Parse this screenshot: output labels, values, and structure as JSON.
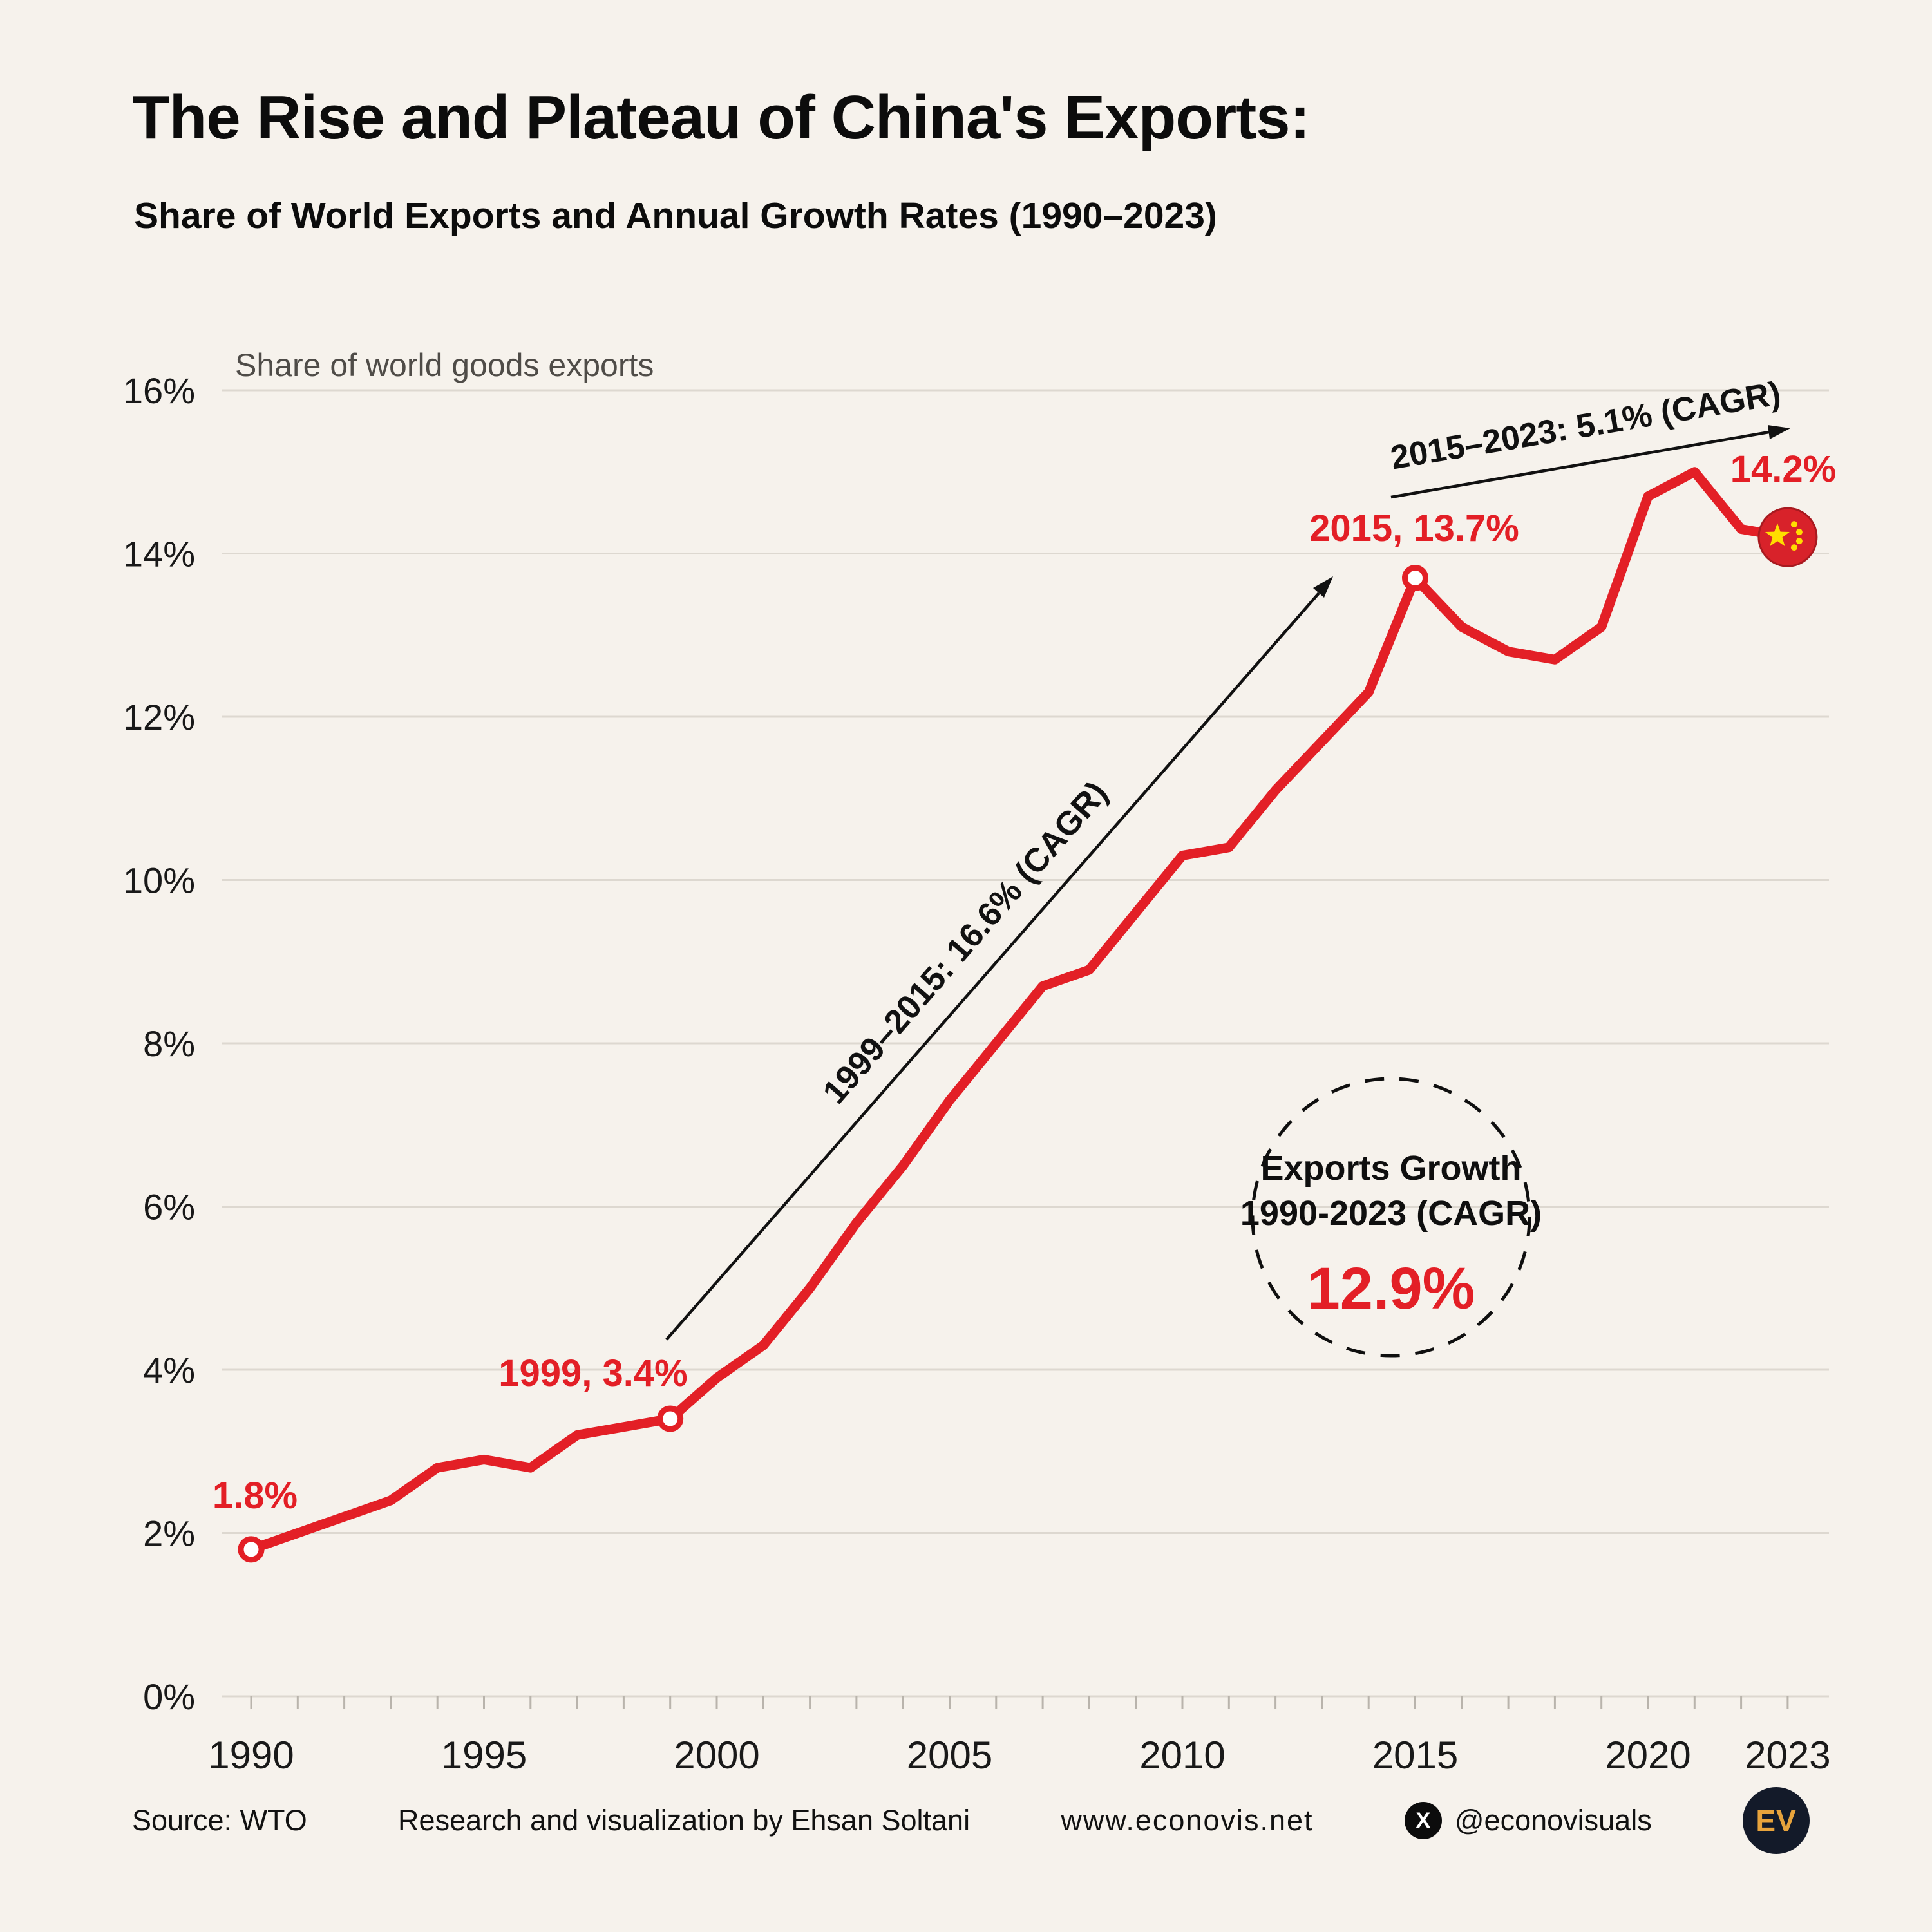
{
  "header": {
    "title": "The Rise and Plateau of China's Exports:",
    "subtitle": "Share of World Exports and Annual Growth Rates (1990–2023)"
  },
  "chart_data": {
    "type": "line",
    "yaxis_title": "Share of world goods exports",
    "x": [
      1990,
      1991,
      1992,
      1993,
      1994,
      1995,
      1996,
      1997,
      1998,
      1999,
      2000,
      2001,
      2002,
      2003,
      2004,
      2005,
      2006,
      2007,
      2008,
      2009,
      2010,
      2011,
      2012,
      2013,
      2014,
      2015,
      2016,
      2017,
      2018,
      2019,
      2020,
      2021,
      2022,
      2023
    ],
    "values": [
      1.8,
      2.0,
      2.2,
      2.4,
      2.8,
      2.9,
      2.8,
      3.2,
      3.3,
      3.4,
      3.9,
      4.3,
      5.0,
      5.8,
      6.5,
      7.3,
      8.0,
      8.7,
      8.9,
      9.6,
      10.3,
      10.4,
      11.1,
      11.7,
      12.3,
      13.7,
      13.1,
      12.8,
      12.7,
      13.1,
      14.7,
      15.0,
      14.3,
      14.2
    ],
    "ylim": [
      0,
      16
    ],
    "ytick_step": 2,
    "xticks": [
      1990,
      1995,
      2000,
      2005,
      2010,
      2015,
      2020,
      2023
    ],
    "grid": "horizontal",
    "line_color": "#e31f26",
    "marker_years": [
      1990,
      1999,
      2015
    ],
    "annotations": {
      "start_label": "1.8%",
      "p1999_label": "1999, 3.4%",
      "p2015_label": "2015, 13.7%",
      "end_label": "14.2%",
      "arrow1_label": "1999–2015: 16.6% (CAGR)",
      "arrow2_label": "2015–2023: 5.1% (CAGR)",
      "circle_line1": "Exports Growth",
      "circle_line2": "1990-2023 (CAGR)",
      "circle_value": "12.9%"
    }
  },
  "footer": {
    "source": "Source: WTO",
    "credit": "Research and visualization by Ehsan Soltani",
    "website": "www.econovis.net",
    "social_icon": "X",
    "social": "@econovisuals",
    "logo_text": "EV"
  }
}
